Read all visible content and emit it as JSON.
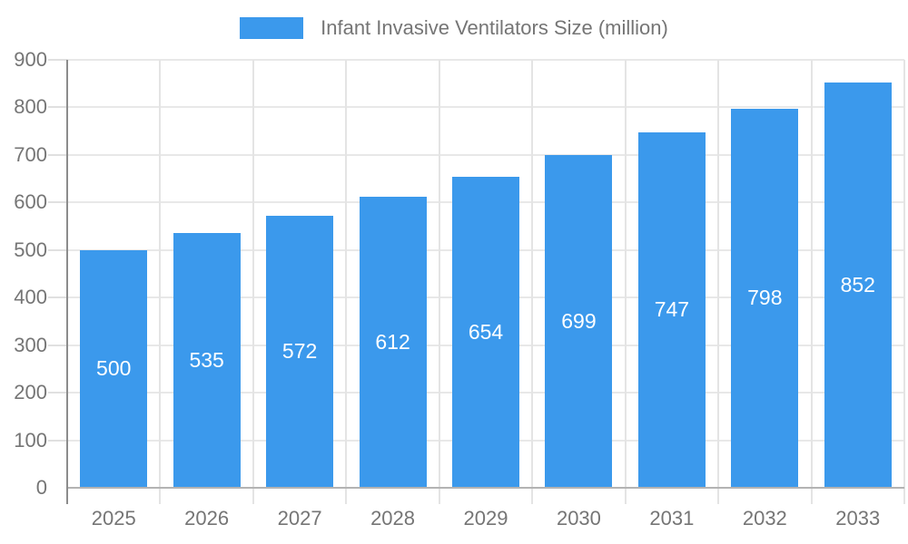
{
  "legend": {
    "label": "Infant Invasive Ventilators Size (million)"
  },
  "chart_data": {
    "type": "bar",
    "title": "Infant Invasive Ventilators Size (million)",
    "series_name": "Infant Invasive Ventilators Size (million)",
    "categories": [
      "2025",
      "2026",
      "2027",
      "2028",
      "2029",
      "2030",
      "2031",
      "2032",
      "2033"
    ],
    "values": [
      500,
      535,
      572,
      612,
      654,
      699,
      747,
      798,
      852
    ],
    "xlabel": "",
    "ylabel": "",
    "ylim": [
      0,
      900
    ],
    "ytick_step": 100,
    "ytick_labels": [
      "0",
      "100",
      "200",
      "300",
      "400",
      "500",
      "600",
      "700",
      "800",
      "900"
    ],
    "grid": true,
    "legend_position": "top",
    "colors": {
      "bar": "#3B99EC",
      "bar_value_label": "#ffffff",
      "axis_text": "#757575",
      "gridline": "#e8e8e8",
      "axis_line": "#8c8c8c",
      "baseline": "#b3b3b3"
    }
  }
}
